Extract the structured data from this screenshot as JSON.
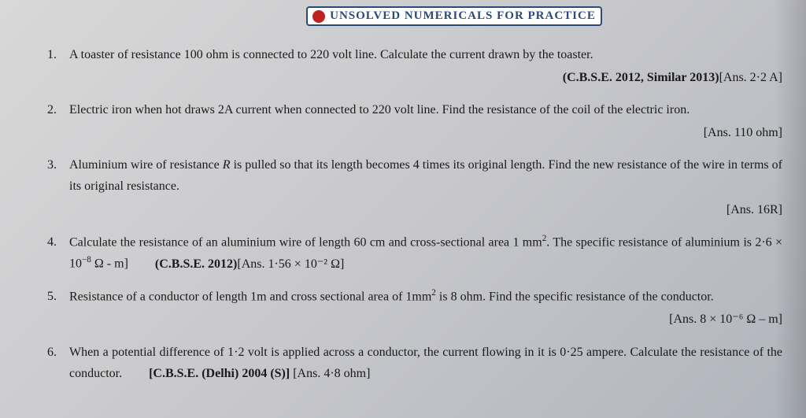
{
  "header": {
    "title": "UNSOLVED NUMERICALS FOR PRACTICE"
  },
  "problems": [
    {
      "num": "1.",
      "text": "A toaster of resistance 100 ohm is connected to 220 volt line. Calculate the current drawn by the toaster.",
      "answer_line": "(C.B.S.E. 2012, Similar 2013)[Ans. 2·2 A]",
      "source_part": "(C.B.S.E. 2012, Similar 2013)",
      "ans_part": "[Ans. 2·2 A]"
    },
    {
      "num": "2.",
      "text": "Electric iron when hot draws 2A current when connected to 220 volt line. Find the resistance of the coil of the electric iron.",
      "ans_part": "[Ans. 110 ohm]"
    },
    {
      "num": "3.",
      "text_pre": "Aluminium wire of resistance ",
      "text_var": "R",
      "text_post": " is pulled so that its length becomes 4 times its original length. Find the new resistance of the wire in terms of its original resistance.",
      "ans_part": "[Ans. 16R]"
    },
    {
      "num": "4.",
      "text_pre": "Calculate the resistance of an aluminium wire of length 60 cm and cross-sectional area 1 mm",
      "text_mid": ". The specific resistance of aluminium is 2·6 × 10",
      "text_post": " Ω - m]",
      "source_part": "(C.B.S.E. 2012)",
      "ans_part": "[Ans. 1·56 × 10⁻² Ω]"
    },
    {
      "num": "5.",
      "text_pre": "Resistance of a conductor of length 1m and cross sectional area of 1mm",
      "text_post": " is 8 ohm. Find the specific resistance of the conductor.",
      "ans_part": "[Ans. 8 × 10⁻⁶ Ω – m]"
    },
    {
      "num": "6.",
      "text": "When a potential difference of 1·2 volt is applied across a conductor, the current flowing in it is 0·25 ampere. Calculate the resistance of the conductor.",
      "source_part": "[C.B.S.E. (Delhi) 2004 (S)]",
      "ans_part": " [Ans. 4·8 ohm]"
    }
  ]
}
